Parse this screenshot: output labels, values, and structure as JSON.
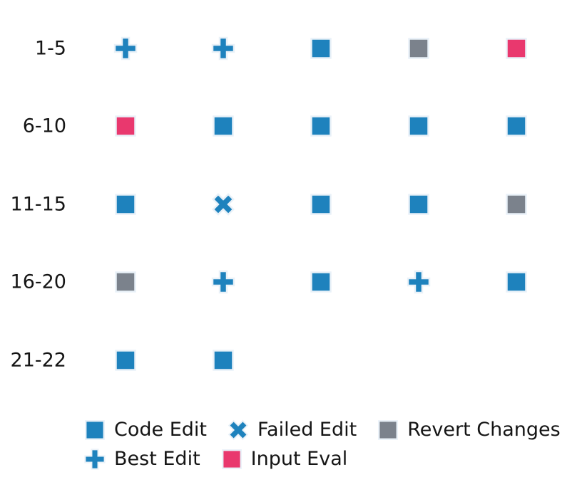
{
  "chart_data": {
    "type": "scatter",
    "title": "",
    "description": "Categorical marker grid of edits 1-22 grouped five per row; marker shape/color encodes edit type",
    "row_labels": [
      "1-5",
      "6-10",
      "11-15",
      "16-20",
      "21-22"
    ],
    "grid": [
      [
        "best",
        "best",
        "code",
        "revert",
        "input"
      ],
      [
        "input",
        "code",
        "code",
        "code",
        "code"
      ],
      [
        "code",
        "failed",
        "code",
        "code",
        "revert"
      ],
      [
        "revert",
        "best",
        "code",
        "best",
        "code"
      ],
      [
        "code",
        "code",
        null,
        null,
        null
      ]
    ],
    "marker_defs": {
      "code": {
        "shape": "square",
        "color": "#1e82bd",
        "label": "Code Edit"
      },
      "failed": {
        "shape": "x",
        "color": "#1e82bd",
        "label": "Failed Edit"
      },
      "revert": {
        "shape": "square",
        "color": "#7b828c",
        "label": "Revert Changes"
      },
      "best": {
        "shape": "plus",
        "color": "#1e82bd",
        "label": "Best Edit"
      },
      "input": {
        "shape": "square",
        "color": "#e9386e",
        "label": "Input Eval"
      }
    },
    "legend": {
      "position": "lower center",
      "rows": [
        [
          "code",
          "failed",
          "revert"
        ],
        [
          "best",
          "input"
        ]
      ]
    },
    "axes": {
      "x_tick_labels": [],
      "grid_lines": false
    },
    "colors": {
      "background": "#ffffff",
      "text": "#151515",
      "marker_halo": "#e9f1f8"
    }
  }
}
